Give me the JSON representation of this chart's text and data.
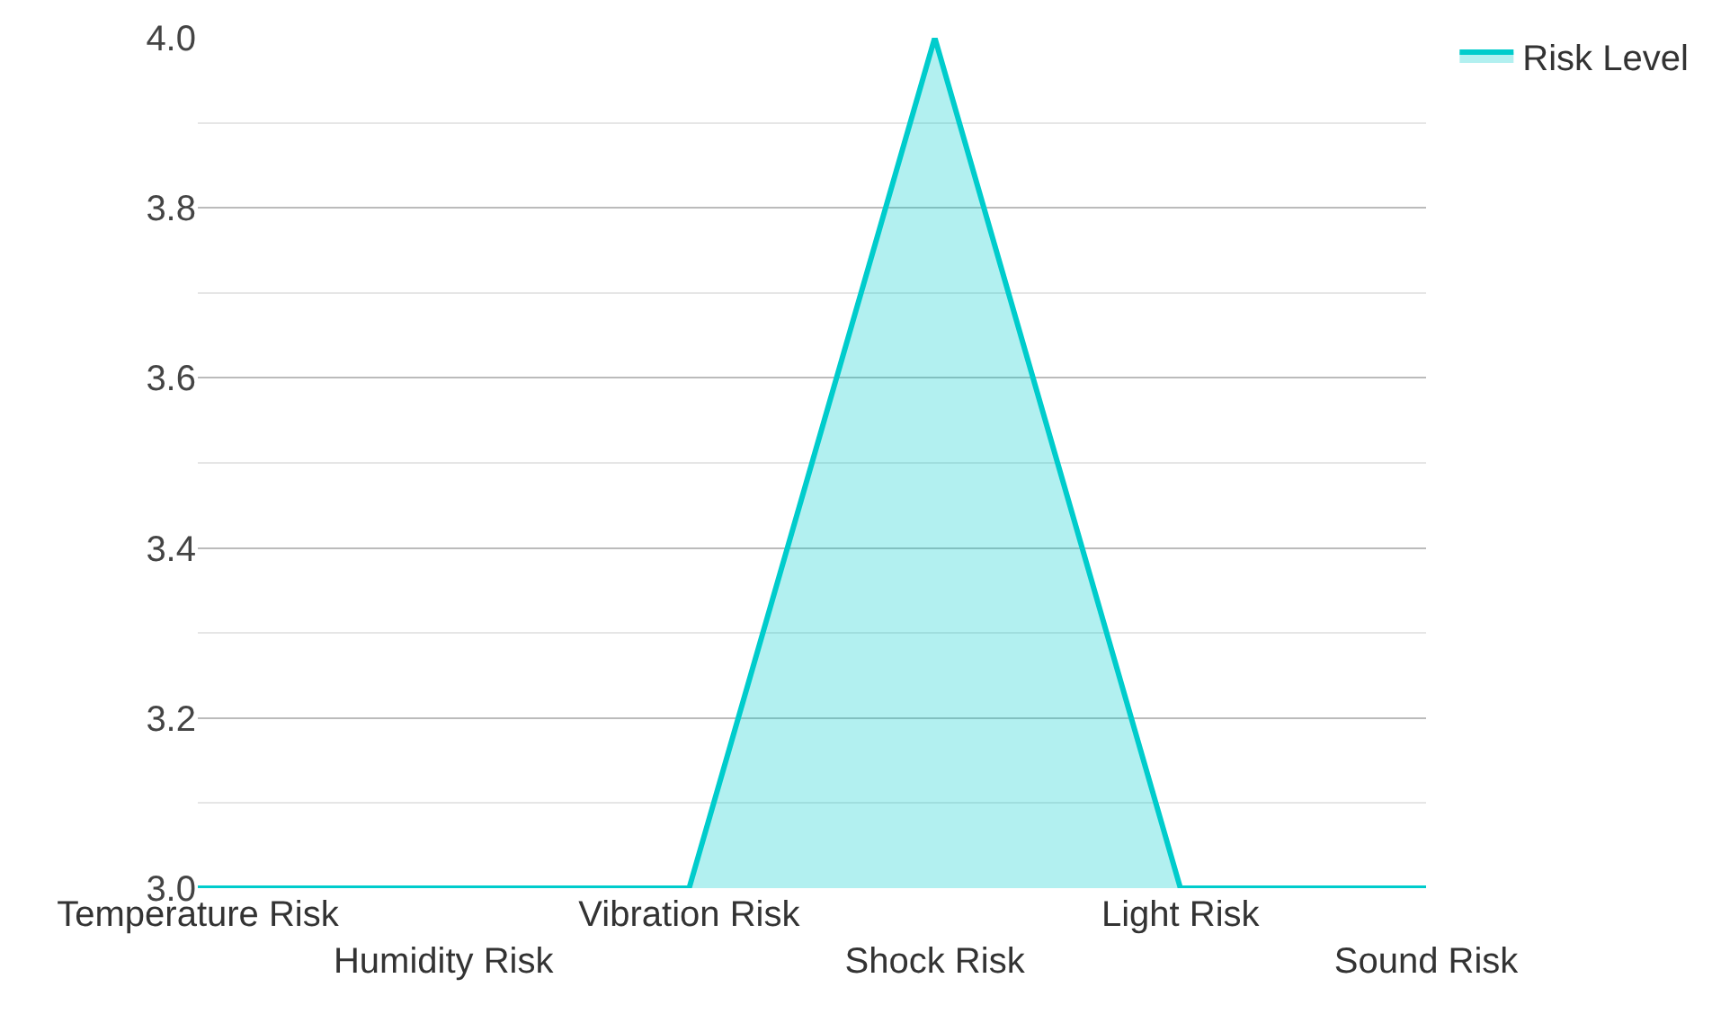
{
  "chart_data": {
    "type": "area",
    "categories": [
      "Temperature Risk",
      "Humidity Risk",
      "Vibration Risk",
      "Shock Risk",
      "Light Risk",
      "Sound Risk"
    ],
    "series": [
      {
        "name": "Risk Level",
        "color": "#00cccc",
        "values": [
          3,
          3,
          3,
          4,
          3,
          3
        ]
      }
    ],
    "ylim": [
      3,
      4
    ],
    "yticks": [
      {
        "value": 3,
        "label": "3.0"
      },
      {
        "value": 3.1,
        "label": null
      },
      {
        "value": 3.2,
        "label": "3.2"
      },
      {
        "value": 3.3,
        "label": null
      },
      {
        "value": 3.4,
        "label": "3.4"
      },
      {
        "value": 3.5,
        "label": null
      },
      {
        "value": 3.6,
        "label": "3.6"
      },
      {
        "value": 3.7,
        "label": null
      },
      {
        "value": 3.8,
        "label": "3.8"
      },
      {
        "value": 3.9,
        "label": null
      },
      {
        "value": 4,
        "label": "4.0"
      }
    ],
    "grid": "y",
    "legend": "top right",
    "marker": "none",
    "line_style": "solid"
  }
}
